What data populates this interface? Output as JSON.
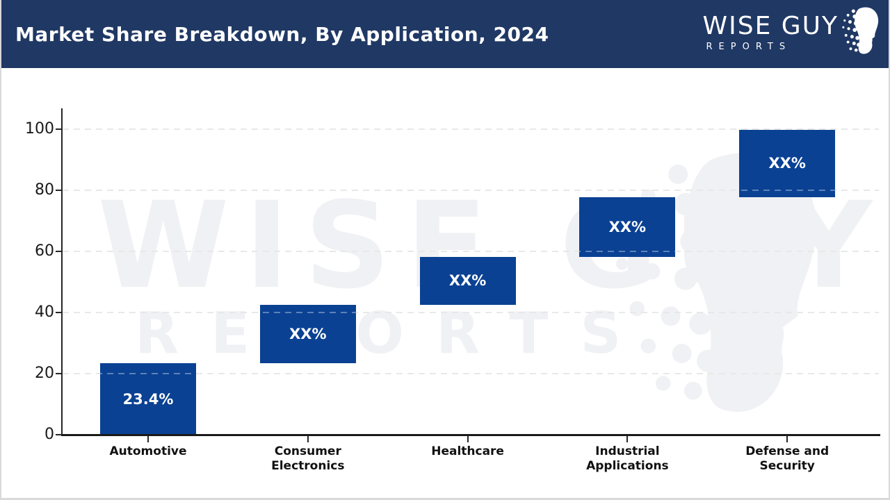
{
  "header": {
    "title": "Market Share Breakdown, By Application, 2024",
    "logo": {
      "line1": "WISE GUY",
      "line2": "REPORTS"
    }
  },
  "watermark": {
    "line1": "WISE GUY",
    "line2": "REPORTS"
  },
  "colors": {
    "header_bg": "#203864",
    "bar": "#0a4193",
    "bar_label": "#ffffff",
    "watermark": "#f0f1f4",
    "grid": "#dcdcdc",
    "axis": "#1a1a1a"
  },
  "chart_data": {
    "type": "bar",
    "subtype": "waterfall",
    "title": "Market Share Breakdown, By Application, 2024",
    "xlabel": "",
    "ylabel": "",
    "categories": [
      "Automotive",
      "Consumer Electronics",
      "Healthcare",
      "Industrial Applications",
      "Defense and Security"
    ],
    "series": [
      {
        "name": "Market share (%)",
        "starts": [
          0,
          23.4,
          42.5,
          58.2,
          77.7
        ],
        "ends": [
          23.4,
          42.5,
          58.2,
          77.7,
          99.8
        ]
      }
    ],
    "bar_labels": [
      "23.4%",
      "XX%",
      "XX%",
      "XX%",
      "XX%"
    ],
    "ylim": [
      0,
      100
    ],
    "yticks": [
      0,
      20,
      40,
      60,
      80,
      100
    ],
    "grid": "horizontal-dashed",
    "legend": "none",
    "bar_color": "#0a4193"
  }
}
